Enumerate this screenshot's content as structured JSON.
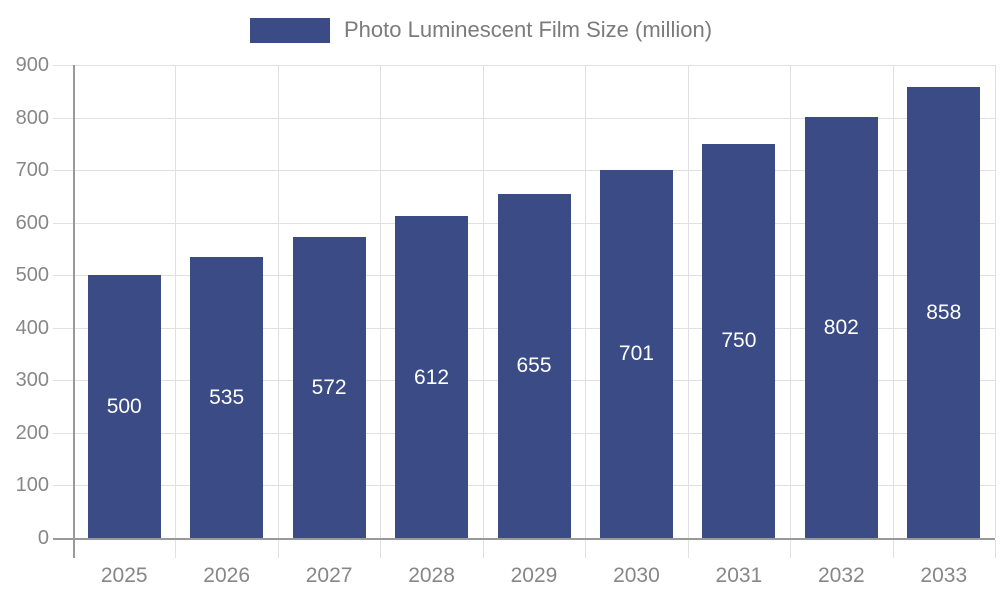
{
  "chart_data": {
    "type": "bar",
    "title": "Photo Luminescent Film Size (million)",
    "categories": [
      "2025",
      "2026",
      "2027",
      "2028",
      "2029",
      "2030",
      "2031",
      "2032",
      "2033"
    ],
    "values": [
      500,
      535,
      572,
      612,
      655,
      701,
      750,
      802,
      858
    ],
    "xlabel": "",
    "ylabel": "",
    "ylim": [
      0,
      900
    ],
    "yticks": [
      0,
      100,
      200,
      300,
      400,
      500,
      600,
      700,
      800,
      900
    ],
    "grid": true,
    "legend_position": "top",
    "bar_color": "#3A4B85",
    "value_label_color": "#FFFFFF",
    "axis_color": "#999999",
    "grid_color": "#E0E0E0",
    "tick_label_color": "#878787"
  }
}
